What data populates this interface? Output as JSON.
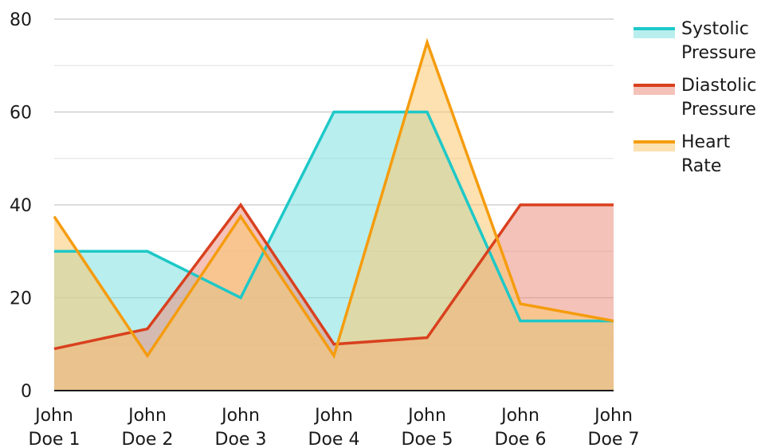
{
  "chart_data": {
    "type": "area",
    "categories": [
      "John Doe 1",
      "John Doe 2",
      "John Doe 3",
      "John Doe 4",
      "John Doe 5",
      "John Doe 6",
      "John Doe 7"
    ],
    "category_lines": [
      [
        "John",
        "Doe 1"
      ],
      [
        "John",
        "Doe 2"
      ],
      [
        "John",
        "Doe 3"
      ],
      [
        "John",
        "Doe 4"
      ],
      [
        "John",
        "Doe 5"
      ],
      [
        "John",
        "Doe 6"
      ],
      [
        "John",
        "Doe 7"
      ]
    ],
    "series": [
      {
        "name": "Systolic Pressure",
        "name_lines": [
          "Systolic",
          "Pressure"
        ],
        "values": [
          30,
          30,
          20,
          60,
          60,
          15,
          15
        ],
        "color": "#1ec8c8",
        "fill": "#7fe0e0"
      },
      {
        "name": "Diastolic Pressure",
        "name_lines": [
          "Diastolic",
          "Pressure"
        ],
        "values": [
          9,
          13.3,
          40,
          10,
          11.4,
          40,
          40
        ],
        "color": "#d9401e",
        "fill": "#eb9080"
      },
      {
        "name": "Heart Rate",
        "name_lines": [
          "Heart",
          "Rate"
        ],
        "values": [
          37.5,
          7.5,
          37.5,
          7.5,
          75,
          18.7,
          15
        ],
        "color": "#f59c0e",
        "fill": "#fbc86f"
      }
    ],
    "title": "",
    "xlabel": "",
    "ylabel": "",
    "ylim": [
      0,
      80
    ],
    "yticks": [
      0,
      20,
      40,
      60,
      80
    ],
    "grid": true,
    "legend_position": "right"
  }
}
